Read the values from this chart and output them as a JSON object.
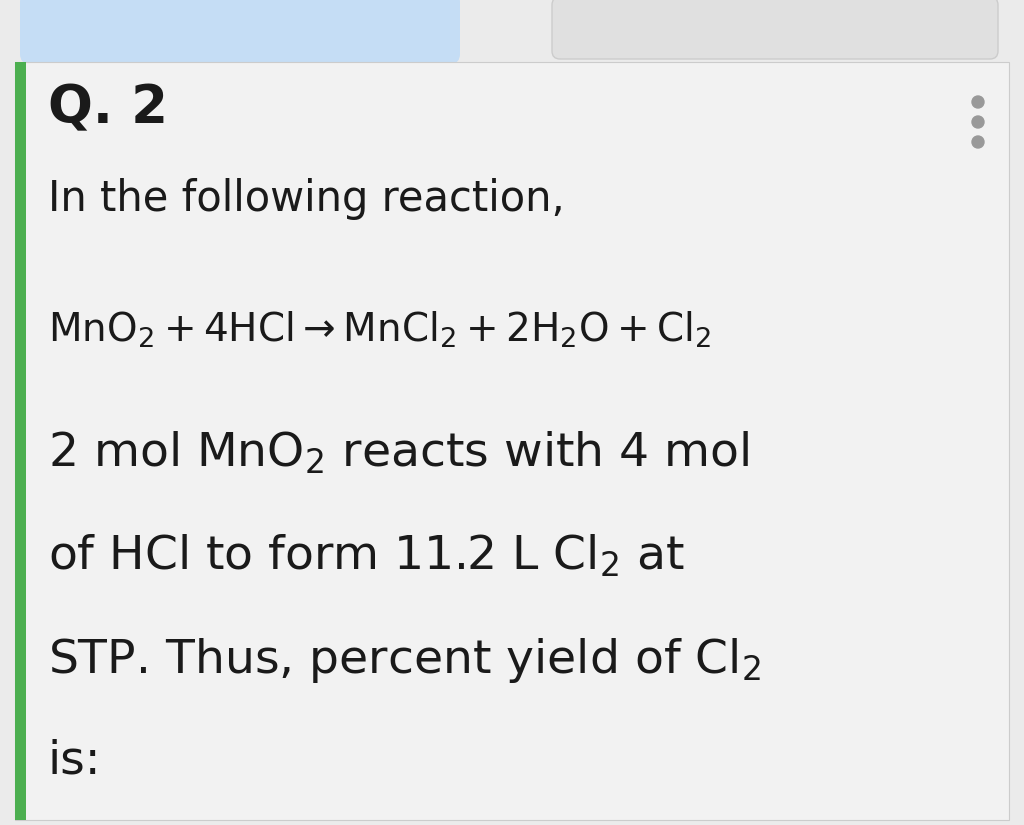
{
  "bg_color": "#ebebeb",
  "card_color": "#f2f2f2",
  "left_bar_color": "#4caf50",
  "dots_color": "#999999",
  "text_color": "#1a1a1a",
  "top_blue_color": "#c5ddf5",
  "top_gray_color": "#ececec",
  "question_number": "Q. 2",
  "intro_text": "In the following reaction,",
  "equation": "$\\mathrm{MnO_2 + 4HCl \\rightarrow MnCl_2 + 2H_2O + Cl_2}$",
  "line1": "2 mol $\\mathrm{MnO_2}$ reacts with 4 mol",
  "line2": "of HCl to form 11.2 L $\\mathrm{Cl_2}$ at",
  "line3": "STP. Thus, percent yield of $\\mathrm{Cl_2}$",
  "line4": "is:",
  "fs_title": 38,
  "fs_intro": 30,
  "fs_equation": 28,
  "fs_body": 34
}
